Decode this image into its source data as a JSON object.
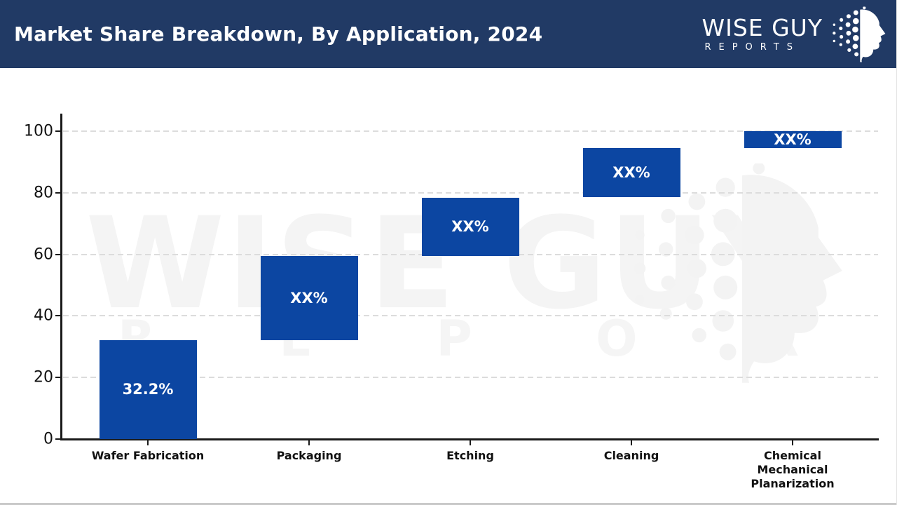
{
  "header": {
    "title": "Market Share Breakdown, By Application, 2024",
    "logo_line1": "WISE GUY",
    "logo_line2": "REPORTS"
  },
  "watermark": {
    "line1": "WISE GUY",
    "line2": "R E P O R T S"
  },
  "colors": {
    "header_bg": "#213a65",
    "bar": "#0c46a2",
    "bar_label": "#ffffff",
    "grid": "#dcdcdc",
    "axis": "#1a1a1a",
    "watermark": "#f4f4f4"
  },
  "chart_data": {
    "type": "bar",
    "subtype": "waterfall",
    "title": "Market Share Breakdown, By Application, 2024",
    "xlabel": "",
    "ylabel": "",
    "categories": [
      "Wafer Fabrication",
      "Packaging",
      "Etching",
      "Cleaning",
      "Chemical Mechanical Planarization"
    ],
    "category_label_lines": [
      [
        "Wafer Fabrication"
      ],
      [
        "Packaging"
      ],
      [
        "Etching"
      ],
      [
        "Cleaning"
      ],
      [
        "Chemical",
        "Mechanical",
        "Planarization"
      ]
    ],
    "segments": [
      {
        "category": "Wafer Fabrication",
        "start": 0,
        "end": 32.2,
        "label": "32.2%"
      },
      {
        "category": "Packaging",
        "start": 32.2,
        "end": 59.5,
        "label": "XX%"
      },
      {
        "category": "Etching",
        "start": 59.5,
        "end": 78.4,
        "label": "XX%"
      },
      {
        "category": "Cleaning",
        "start": 78.5,
        "end": 94.5,
        "label": "XX%"
      },
      {
        "category": "Chemical Mechanical Planarization",
        "start": 94.5,
        "end": 100,
        "label": "XX%"
      }
    ],
    "yticks": [
      0,
      20,
      40,
      60,
      80,
      100
    ],
    "ylim": [
      0,
      106
    ],
    "grid": true,
    "grid_style": "dashed",
    "legend_position": "none"
  }
}
